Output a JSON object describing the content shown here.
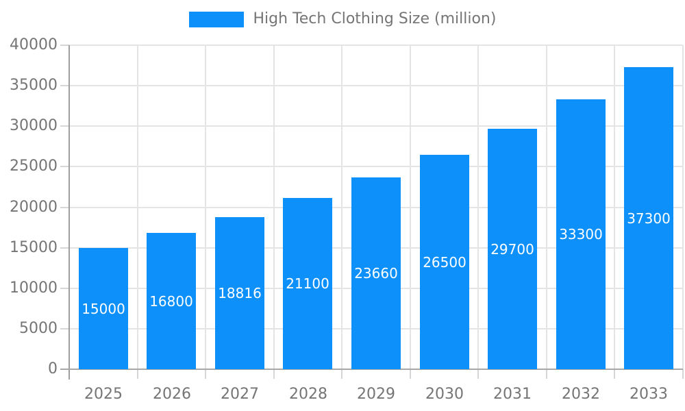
{
  "chart_data": {
    "type": "bar",
    "title": "",
    "legend": "High Tech Clothing Size (million)",
    "legend_position": "top-center",
    "categories": [
      "2025",
      "2026",
      "2027",
      "2028",
      "2029",
      "2030",
      "2031",
      "2032",
      "2033"
    ],
    "values": [
      15000,
      16800,
      18816,
      21100,
      23660,
      26500,
      29700,
      33300,
      37300
    ],
    "bar_labels": [
      "15000",
      "16800",
      "18816",
      "21100",
      "23660",
      "26500",
      "29700",
      "33300",
      "37300"
    ],
    "bar_labels_visible": true,
    "xlabel": "",
    "ylabel": "",
    "ylim": [
      0,
      40000
    ],
    "yticks": [
      0,
      5000,
      10000,
      15000,
      20000,
      25000,
      30000,
      35000,
      40000
    ],
    "ytick_labels": [
      "0",
      "5000",
      "10000",
      "15000",
      "20000",
      "25000",
      "30000",
      "35000",
      "40000"
    ],
    "grid": true,
    "colors": {
      "bar": "#0d90fa",
      "bar_label_text": "#ffffff",
      "axis_text": "#757575",
      "legend_text": "#757575",
      "gridline": "#e4e4e4",
      "tick": "#d6d6d6",
      "axis_line": "#9e9e9e",
      "baseline": "#a8a8a8",
      "background": "#ffffff"
    }
  }
}
